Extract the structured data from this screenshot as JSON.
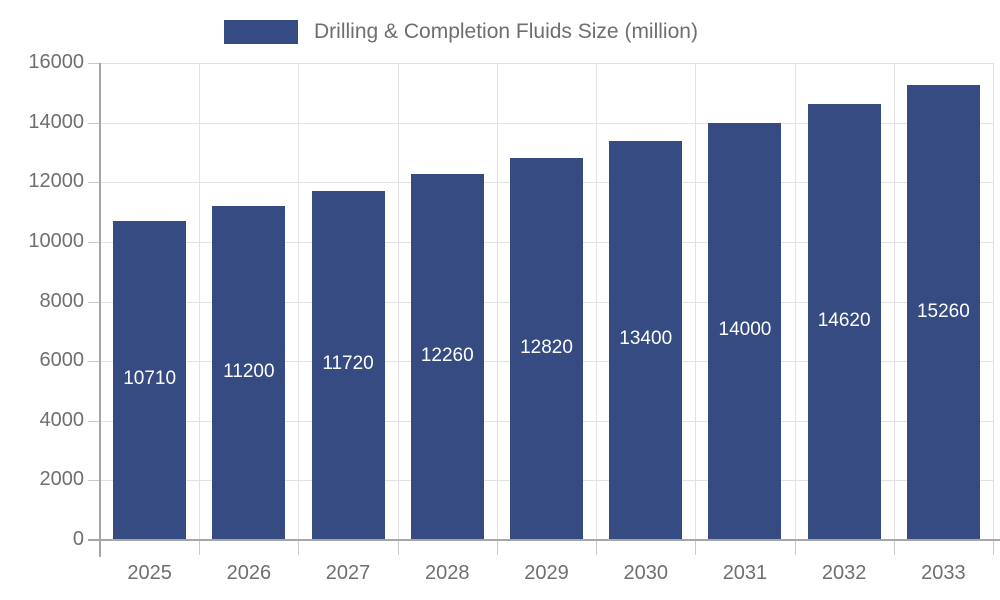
{
  "chart_data": {
    "type": "bar",
    "title": "Drilling & Completion Fluids Size (million)",
    "categories": [
      "2025",
      "2026",
      "2027",
      "2028",
      "2029",
      "2030",
      "2031",
      "2032",
      "2033"
    ],
    "values": [
      10710,
      11200,
      11720,
      12260,
      12820,
      13400,
      14000,
      14620,
      15260
    ],
    "series_name": "Drilling & Completion Fluids Size (million)",
    "xlabel": "",
    "ylabel": "",
    "ylim": [
      0,
      16000
    ],
    "yticks": [
      0,
      2000,
      4000,
      6000,
      8000,
      10000,
      12000,
      14000,
      16000
    ],
    "grid": "horizontal and vertical light gray gridlines",
    "legend_position": "top",
    "value_labels": "white, centered vertically inside each bar"
  },
  "colors": {
    "bar_fill": "#364b82",
    "value_label_text": "#ffffff",
    "axis_text": "#6f6f6f",
    "legend_text": "#6e6e6e",
    "grid_line": "#e2e2e2",
    "axis_line": "#a6a6a6",
    "tick_line": "#c9c9c9",
    "background": "#ffffff"
  }
}
